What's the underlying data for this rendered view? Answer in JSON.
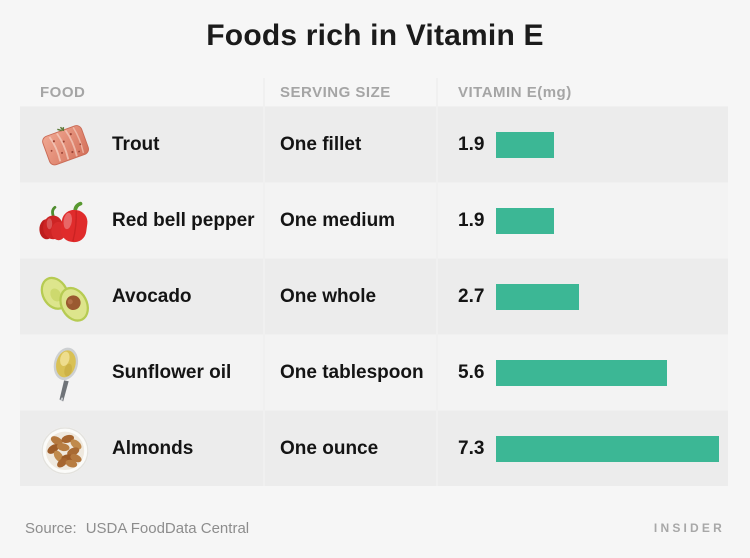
{
  "title": "Foods rich in Vitamin E",
  "columns": [
    "FOOD",
    "SERVING SIZE",
    "VITAMIN E(mg)"
  ],
  "rows": [
    {
      "food": "Trout",
      "icon": "trout-icon",
      "serving": "One fillet",
      "value": "1.9",
      "mg": 1.9
    },
    {
      "food": "Red bell pepper",
      "icon": "red-bell-pepper-icon",
      "serving": "One medium",
      "value": "1.9",
      "mg": 1.9
    },
    {
      "food": "Avocado",
      "icon": "avocado-icon",
      "serving": "One whole",
      "value": "2.7",
      "mg": 2.7
    },
    {
      "food": "Sunflower oil",
      "icon": "sunflower-oil-spoon-icon",
      "serving": "One tablespoon",
      "value": "5.6",
      "mg": 5.6
    },
    {
      "food": "Almonds",
      "icon": "almonds-bowl-icon",
      "serving": "One ounce",
      "value": "7.3",
      "mg": 7.3
    }
  ],
  "footer": {
    "source_label": "Source:",
    "source_value": "USDA FoodData Central",
    "brand": "INSIDER"
  },
  "colors": {
    "bar": "#3cb795",
    "text": "#141414",
    "muted": "#a5a5a5",
    "background": "#f6f6f6"
  },
  "chart_data": {
    "type": "bar",
    "orientation": "horizontal",
    "title": "Foods rich in Vitamin E",
    "categories": [
      "Trout",
      "Red bell pepper",
      "Avocado",
      "Sunflower oil",
      "Almonds"
    ],
    "values": [
      1.9,
      1.9,
      2.7,
      5.6,
      7.3
    ],
    "serving_sizes": [
      "One fillet",
      "One medium",
      "One whole",
      "One tablespoon",
      "One ounce"
    ],
    "value_label": "VITAMIN E(mg)",
    "xlim": [
      0,
      7.6
    ],
    "grid": false,
    "data_labels": true,
    "bar_color": "#3cb795",
    "source": "USDA FoodData Central",
    "brand": "INSIDER"
  }
}
